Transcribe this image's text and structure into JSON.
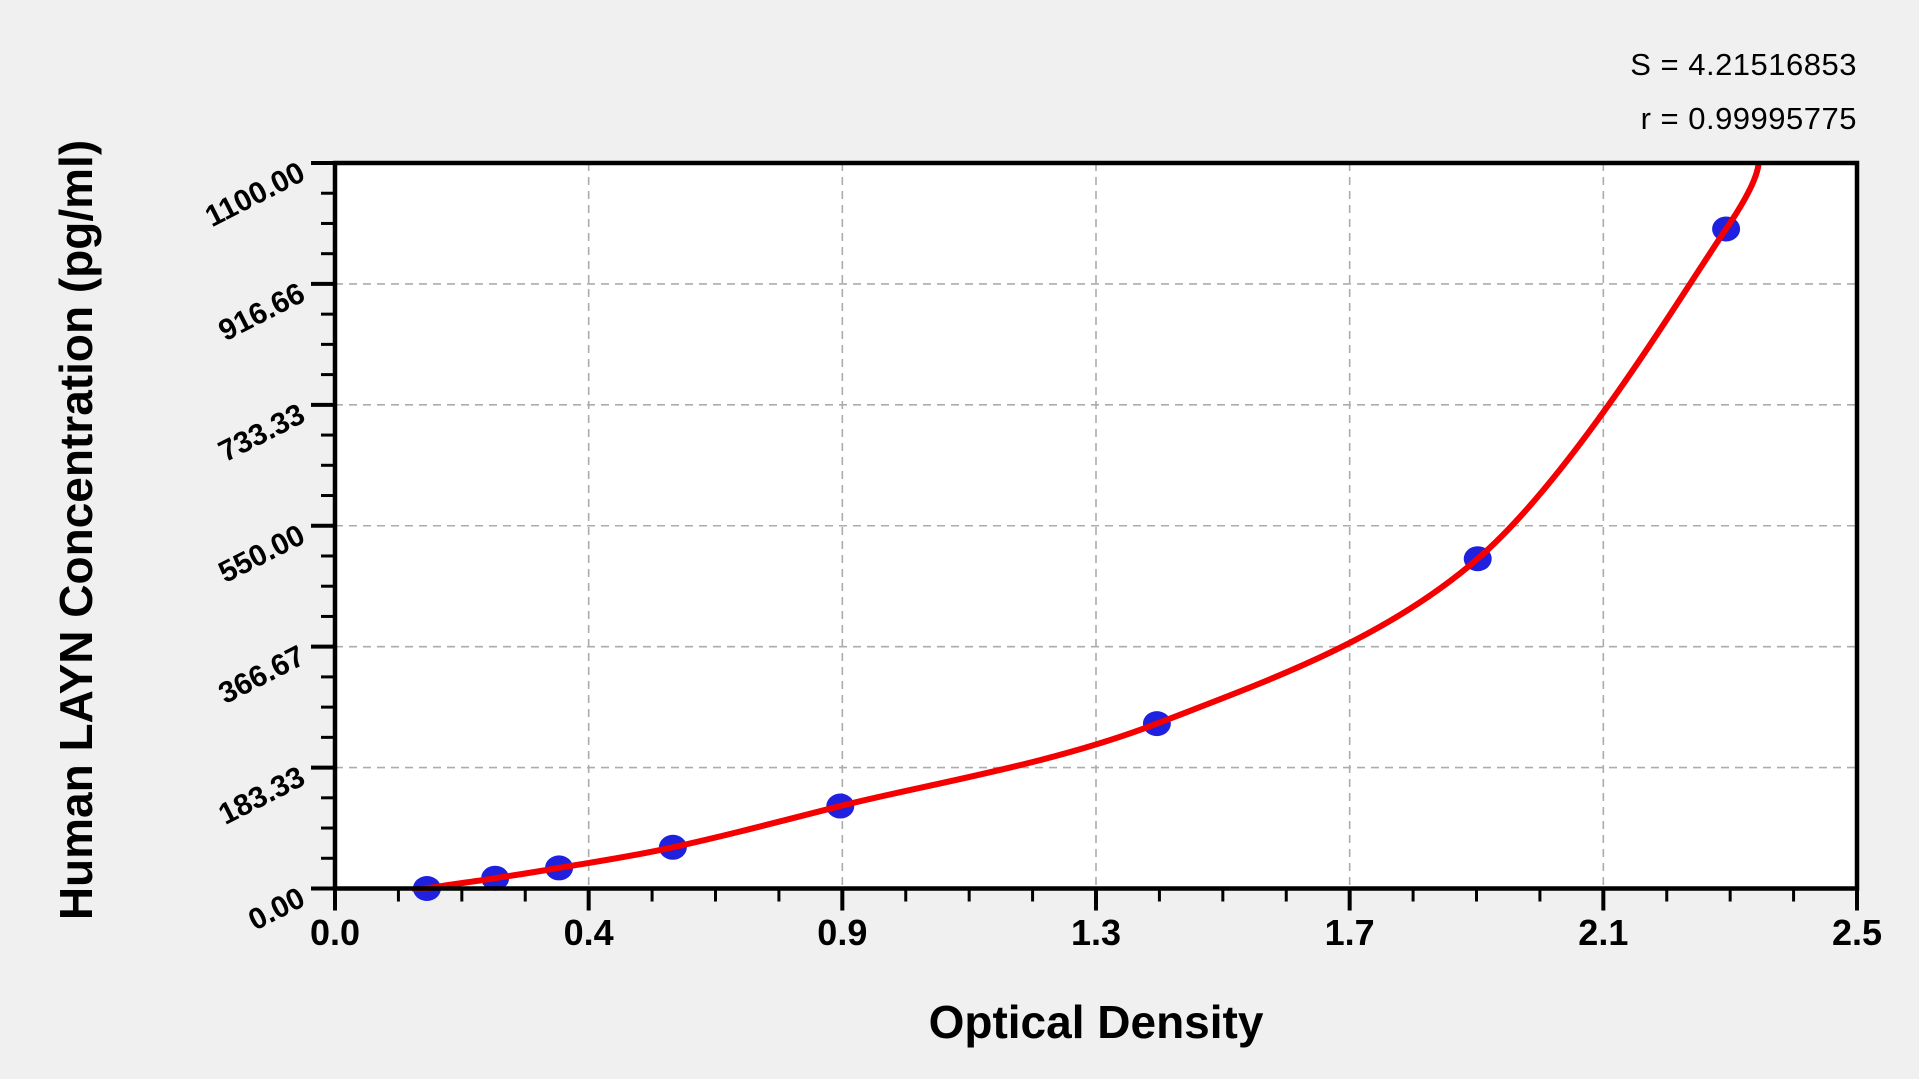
{
  "stats": {
    "s_line": "S = 4.21516853",
    "r_line": "r = 0.99995775"
  },
  "chart_data": {
    "type": "scatter",
    "title": "",
    "xlabel": "Optical Density",
    "ylabel": "Human LAYN Concentration (pg/ml)",
    "xlim": [
      0,
      2.5
    ],
    "ylim": [
      0,
      1100
    ],
    "x_tick_labels": [
      "0.0",
      "0.4",
      "0.9",
      "1.3",
      "1.7",
      "2.1",
      "2.5"
    ],
    "y_tick_labels": [
      "0.00",
      "183.33",
      "366.67",
      "550.00",
      "733.33",
      "916.66",
      "1100.00"
    ],
    "minor_divisions_per_major": 4,
    "grid": "dashed gridlines at every major tick, both axes",
    "legend_position": "none",
    "annotations": [
      "S = 4.21516853",
      "r = 0.99995775"
    ],
    "series": [
      {
        "name": "standard-points",
        "type": "scatter",
        "marker": "filled-circle",
        "points": [
          {
            "od": 0.151,
            "conc": 0
          },
          {
            "od": 0.263,
            "conc": 15.6
          },
          {
            "od": 0.368,
            "conc": 31.25
          },
          {
            "od": 0.555,
            "conc": 62.5
          },
          {
            "od": 0.83,
            "conc": 125
          },
          {
            "od": 1.35,
            "conc": 250
          },
          {
            "od": 1.877,
            "conc": 500
          },
          {
            "od": 2.285,
            "conc": 1000
          }
        ]
      },
      {
        "name": "fitted-curve",
        "type": "line",
        "curve_start": {
          "od": 0.128,
          "conc": -8
        },
        "curve_end": {
          "od": 2.34,
          "conc": 1130
        }
      }
    ],
    "colors": {
      "point": "#2020DF",
      "curve": "#F40000",
      "grid": "#ACACAC",
      "axis": "#000000",
      "figure_background": "#F0F0F0",
      "plot_background": "#FFFFFF",
      "text": "#000000"
    }
  }
}
